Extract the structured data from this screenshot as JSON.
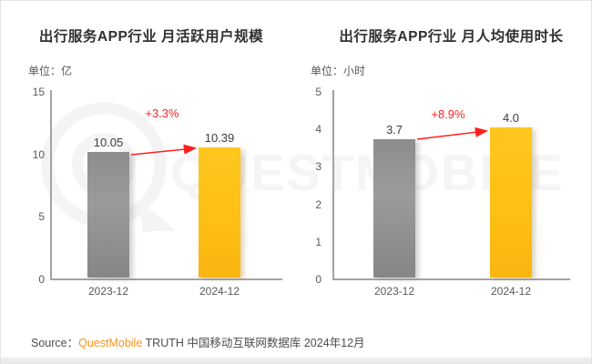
{
  "page": {
    "watermark_text": "QUESTMOBILE",
    "source": {
      "prefix": "Source：",
      "brand": "QuestMobile",
      "suffix": " TRUTH 中国移动互联网数据库 2024年12月"
    }
  },
  "colors": {
    "bar_previous_gray": "#8f8f8f",
    "bar_current_orange": "#fdc013",
    "growth_red": "#ff1f1f",
    "axis_gray": "#a3a3a3",
    "brand_orange": "#f7941e"
  },
  "chart_data": [
    {
      "type": "bar",
      "title": "出行服务APP行业 月活跃用户规模",
      "unit": "单位：亿",
      "categories": [
        "2023-12",
        "2024-12"
      ],
      "values": [
        10.05,
        10.39
      ],
      "value_labels": [
        "10.05",
        "10.39"
      ],
      "growth_label": "+3.3%",
      "xlabel": "",
      "ylabel": "亿",
      "ylim": [
        0,
        15
      ],
      "y_ticks": [
        "15",
        "10",
        "5",
        "0"
      ],
      "grid": false,
      "legend": false,
      "series_colors": [
        "#8f8f8f",
        "#fdc013"
      ]
    },
    {
      "type": "bar",
      "title": "出行服务APP行业 月人均使用时长",
      "unit": "单位：小时",
      "categories": [
        "2023-12",
        "2024-12"
      ],
      "values": [
        3.7,
        4.0
      ],
      "value_labels": [
        "3.7",
        "4.0"
      ],
      "growth_label": "+8.9%",
      "xlabel": "",
      "ylabel": "小时",
      "ylim": [
        0,
        5
      ],
      "y_ticks": [
        "5",
        "4",
        "3",
        "2",
        "1",
        "0"
      ],
      "grid": false,
      "legend": false,
      "series_colors": [
        "#8f8f8f",
        "#fdc013"
      ]
    }
  ]
}
